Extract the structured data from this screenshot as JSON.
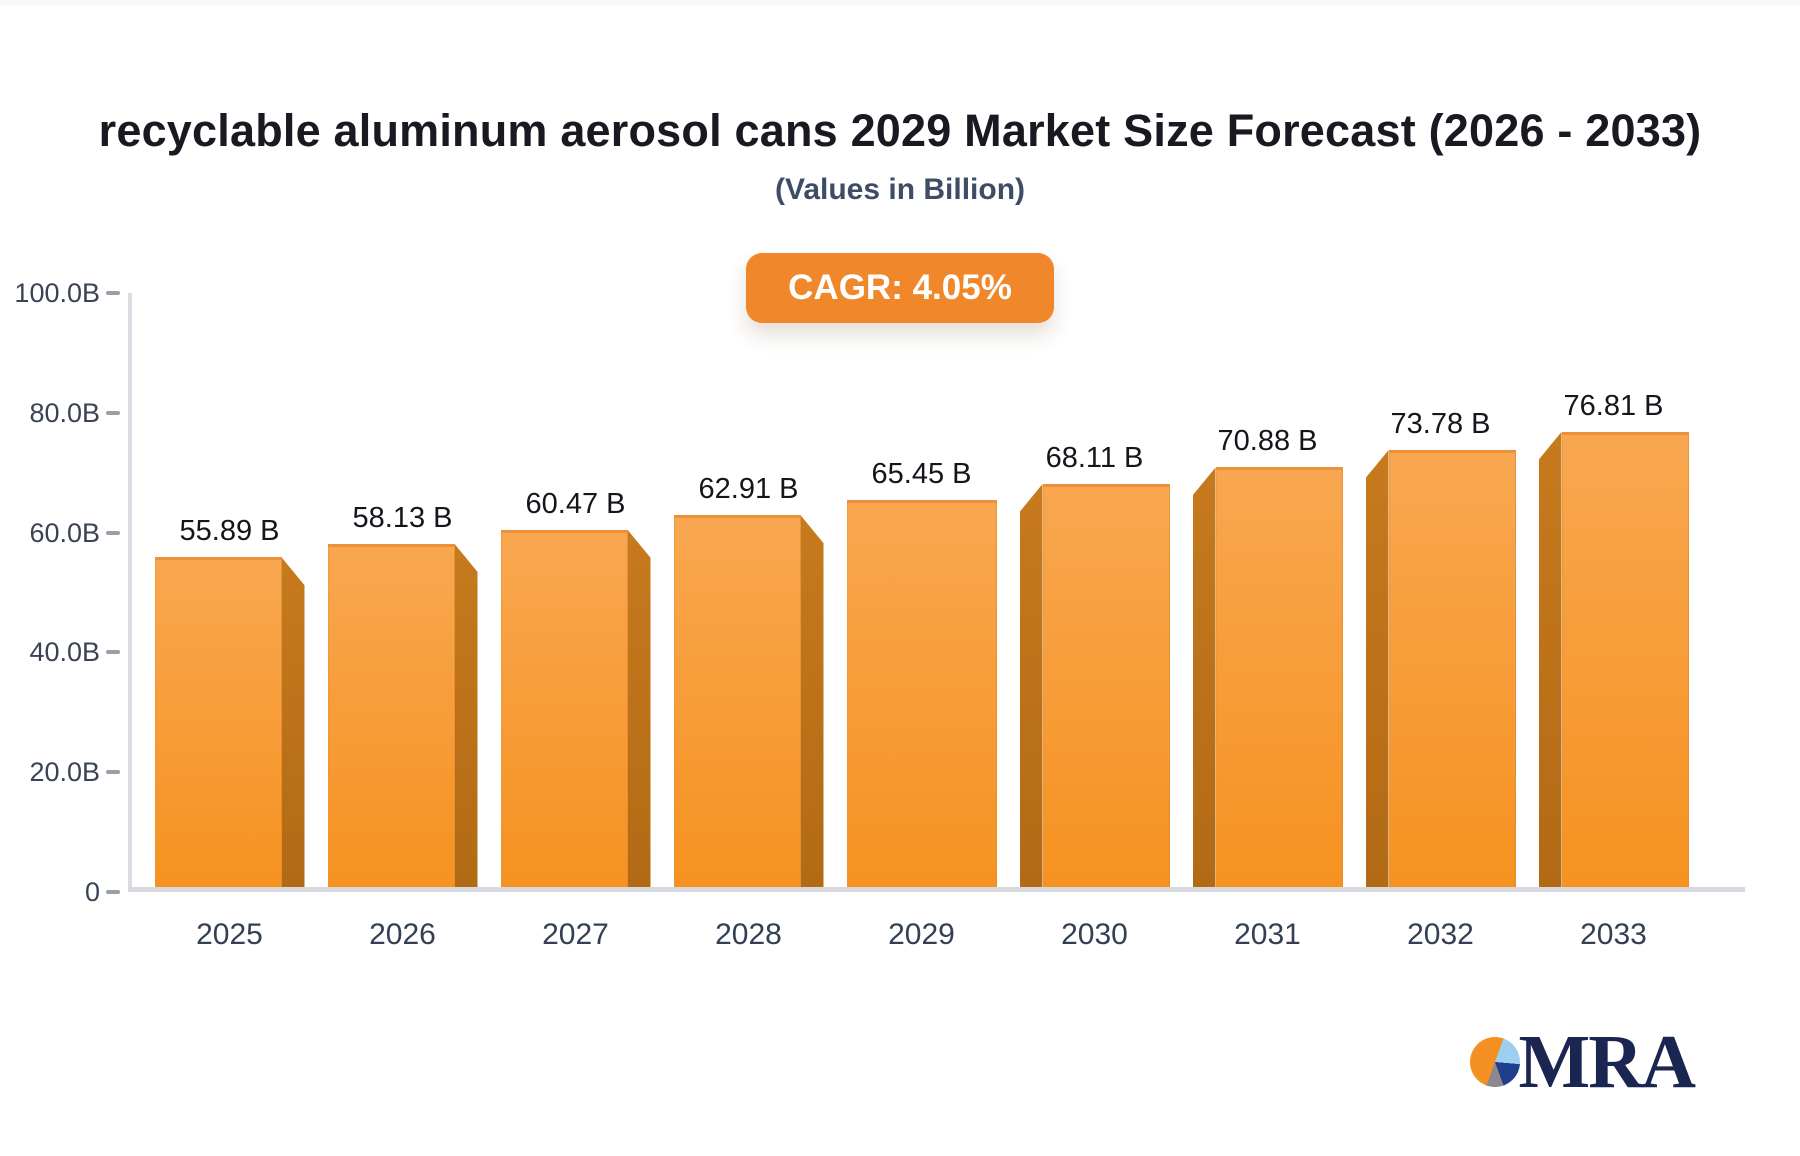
{
  "header": {
    "title": "recyclable aluminum aerosol cans 2029 Market Size Forecast (2026 - 2033)",
    "subtitle": "(Values in Billion)",
    "cagr_label": "CAGR: 4.05%"
  },
  "chart_data": {
    "type": "bar",
    "title": "recyclable aluminum aerosol cans 2029 Market Size Forecast (2026 - 2033)",
    "subtitle": "(Values in Billion)",
    "categories": [
      "2025",
      "2026",
      "2027",
      "2028",
      "2029",
      "2030",
      "2031",
      "2032",
      "2033"
    ],
    "values": [
      55.89,
      58.13,
      60.47,
      62.91,
      65.45,
      68.11,
      70.88,
      73.78,
      76.81
    ],
    "value_labels": [
      "55.89 B",
      "58.13 B",
      "60.47 B",
      "62.91 B",
      "65.45 B",
      "68.11 B",
      "70.88 B",
      "73.78 B",
      "76.81 B"
    ],
    "xlabel": "",
    "ylabel": "",
    "ylim": [
      0,
      100
    ],
    "yticks": [
      {
        "label": "100.0B",
        "value": 100
      },
      {
        "label": "80.0B",
        "value": 80
      },
      {
        "label": "60.0B",
        "value": 60
      },
      {
        "label": "40.0B",
        "value": 40
      },
      {
        "label": "20.0B",
        "value": 20
      },
      {
        "label": "0",
        "value": 0
      }
    ],
    "grid": false,
    "legend": false,
    "cagr": "CAGR: 4.05%",
    "bar_style": "3d-orange"
  },
  "colors": {
    "bar_face_top": "#F8A750",
    "bar_face_bottom": "#F69220",
    "bar_side": "#BC6F18",
    "badge_background": "#F0882B",
    "badge_text": "#FFFFFF",
    "axis_line": "#DADCE1",
    "baseline": "#D7D9DE",
    "title_text": "#191922",
    "subtitle_text": "#3E4C66",
    "tick_text": "#3A4454",
    "brand_navy": "#1A2551",
    "brand_orange": "#F59122",
    "brand_lightblue": "#9FCFF0",
    "brand_gray": "#8E878C"
  },
  "watermark": {
    "brand": "MRA"
  }
}
